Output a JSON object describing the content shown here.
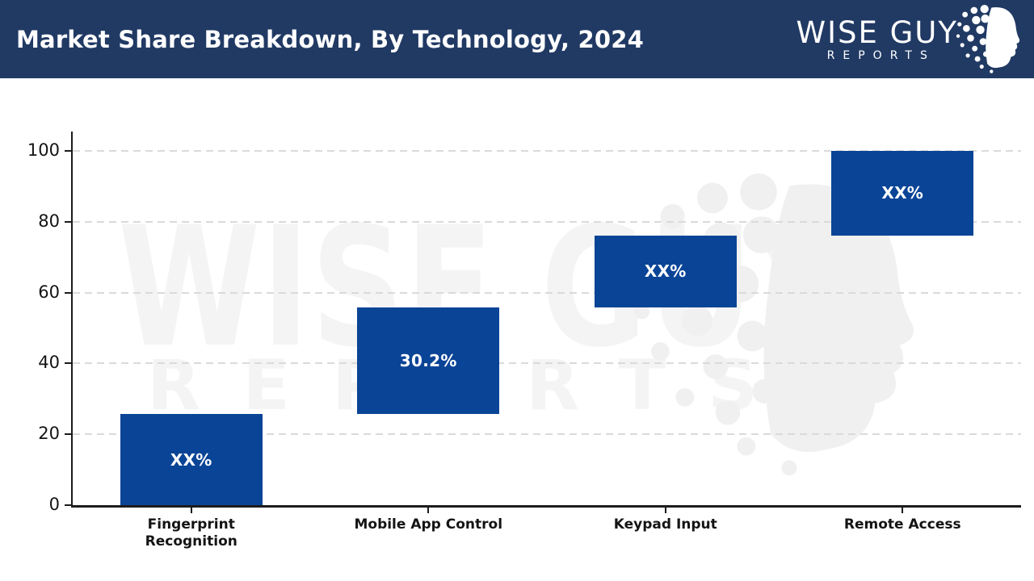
{
  "header": {
    "title": "Market Share Breakdown, By Technology, 2024",
    "bg_color": "#213a64"
  },
  "logo": {
    "line1": "WISE GUY",
    "line2": "REPORTS"
  },
  "watermark": {
    "line1": "WISE GUY",
    "line2": "REPORTS"
  },
  "chart_data": {
    "type": "bar",
    "variant": "floating-segment bars (waterfall stacking to 100%)",
    "title": "Market Share Breakdown, By Technology, 2024",
    "categories": [
      "Fingerprint\nRecognition",
      "Mobile App Control",
      "Keypad Input",
      "Remote Access"
    ],
    "segments": [
      {
        "category": "Fingerprint Recognition",
        "start": 0,
        "end": 25.7,
        "label": "XX%"
      },
      {
        "category": "Mobile App Control",
        "start": 25.7,
        "end": 55.9,
        "label": "30.2%"
      },
      {
        "category": "Keypad Input",
        "start": 55.9,
        "end": 76.2,
        "label": "XX%"
      },
      {
        "category": "Remote Access",
        "start": 76.2,
        "end": 100,
        "label": "XX%"
      }
    ],
    "yticks": [
      0,
      20,
      40,
      60,
      80,
      100
    ],
    "ylim": [
      0,
      105.5
    ],
    "xlabel": "",
    "ylabel": "",
    "grid": true,
    "grid_style": "dashed horizontal",
    "legend": false,
    "bar_color": "#0a4496",
    "grid_color": "#dadada",
    "axis_color": "#1c1c1c"
  }
}
